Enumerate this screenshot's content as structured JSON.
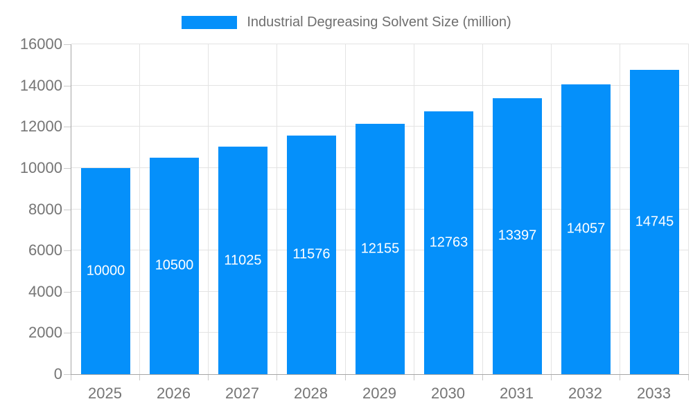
{
  "chart_data": {
    "type": "bar",
    "title": "",
    "legend": "Industrial Degreasing Solvent Size (million)",
    "legend_position": "top",
    "categories": [
      "2025",
      "2026",
      "2027",
      "2028",
      "2029",
      "2030",
      "2031",
      "2032",
      "2033"
    ],
    "series": [
      {
        "name": "Industrial Degreasing Solvent Size (million)",
        "values": [
          10000,
          10500,
          11025,
          11576,
          12155,
          12763,
          13397,
          14057,
          14745
        ]
      }
    ],
    "bar_labels_shown": true,
    "xlabel": "",
    "ylabel": "",
    "ylim": [
      0,
      16000
    ],
    "ytick_step": 2000,
    "grid": true,
    "colors": {
      "bar": "#0590fa",
      "bar_label_text": "#ffffff",
      "axis_line": "#a6a6a6",
      "gridline": "#e3e3e3",
      "tick": "#c9c9c9",
      "axis_text": "#757575",
      "legend_text": "#6e6e6e",
      "background": "#ffffff"
    }
  }
}
